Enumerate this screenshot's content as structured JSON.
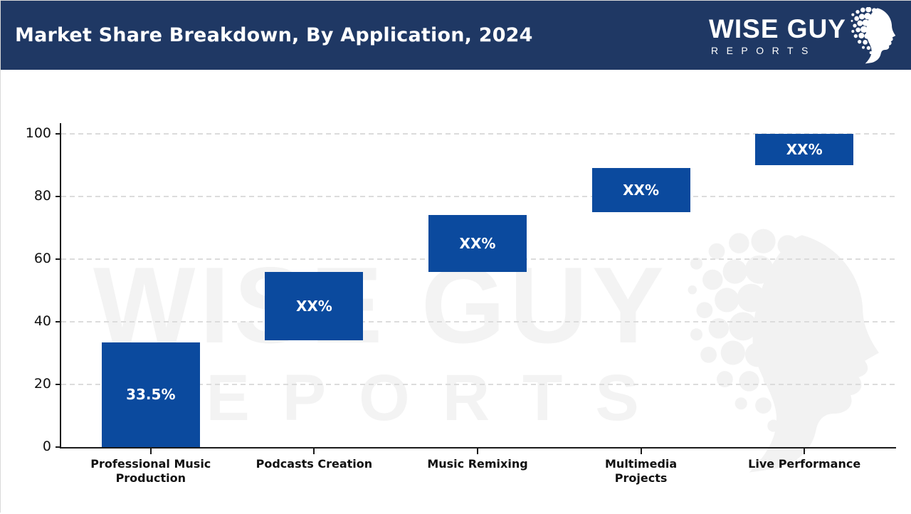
{
  "header": {
    "title": "Market Share Breakdown, By Application, 2024",
    "logo": {
      "line1": "WISE GUY",
      "line2": "REPORTS"
    }
  },
  "watermark": {
    "line1": "WISE GUY",
    "line2": "REPORTS"
  },
  "colors": {
    "header_bg": "#1F3864",
    "bar": "#0B4A9E",
    "bar_label": "#ffffff",
    "grid": "#dcdcdc",
    "axis": "#1a1a1a",
    "watermark": "#f3f3f3"
  },
  "chart_data": {
    "type": "bar",
    "subtype": "floating-segment-waterfall",
    "title": "Market Share Breakdown, By Application, 2024",
    "categories": [
      "Professional Music Production",
      "Podcasts Creation",
      "Music Remixing",
      "Multimedia Projects",
      "Live Performance"
    ],
    "category_lines": [
      [
        "Professional Music",
        "Production"
      ],
      [
        "Podcasts Creation"
      ],
      [
        "Music Remixing"
      ],
      [
        "Multimedia",
        "Projects"
      ],
      [
        "Live Performance"
      ]
    ],
    "segments": [
      [
        0,
        33.5
      ],
      [
        34,
        56
      ],
      [
        56,
        74
      ],
      [
        75,
        89
      ],
      [
        90,
        100
      ]
    ],
    "values": [
      33.5,
      22,
      18,
      14,
      10
    ],
    "bar_labels": [
      "33.5%",
      "XX%",
      "XX%",
      "XX%",
      "XX%"
    ],
    "xlabel": "",
    "ylabel": "",
    "y_ticks": [
      0,
      20,
      40,
      60,
      80,
      100
    ],
    "ylim": [
      0,
      100
    ],
    "grid": "horizontal-dashed",
    "legend": "none"
  }
}
